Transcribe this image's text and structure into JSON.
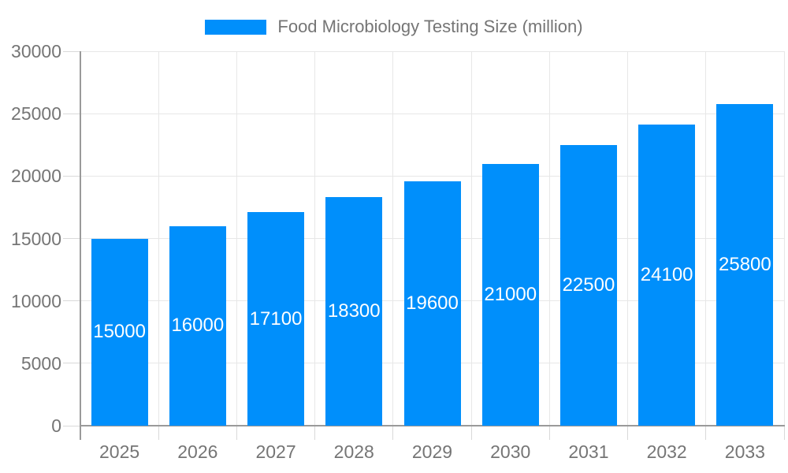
{
  "chart_data": {
    "type": "bar",
    "title": "Food Microbiology Testing Size (million)",
    "categories": [
      "2025",
      "2026",
      "2027",
      "2028",
      "2029",
      "2030",
      "2031",
      "2032",
      "2033"
    ],
    "values": [
      15000,
      16000,
      17100,
      18300,
      19600,
      21000,
      22500,
      24100,
      25800
    ],
    "value_labels": [
      "15000",
      "16000",
      "17100",
      "18300",
      "19600",
      "21000",
      "22500",
      "24100",
      "25800"
    ],
    "xlabel": "",
    "ylabel": "",
    "ylim": [
      0,
      30000
    ],
    "yticks": [
      0,
      5000,
      10000,
      15000,
      20000,
      25000,
      30000
    ],
    "grid": true,
    "legend_position": "top",
    "colors": {
      "bar": "#008FFB",
      "text": "#757575",
      "value_text": "#ffffff",
      "gridline": "#e7e7e7",
      "tick": "#d9d9d9",
      "axis_line": "#9a9a9a",
      "background": "#ffffff"
    }
  }
}
